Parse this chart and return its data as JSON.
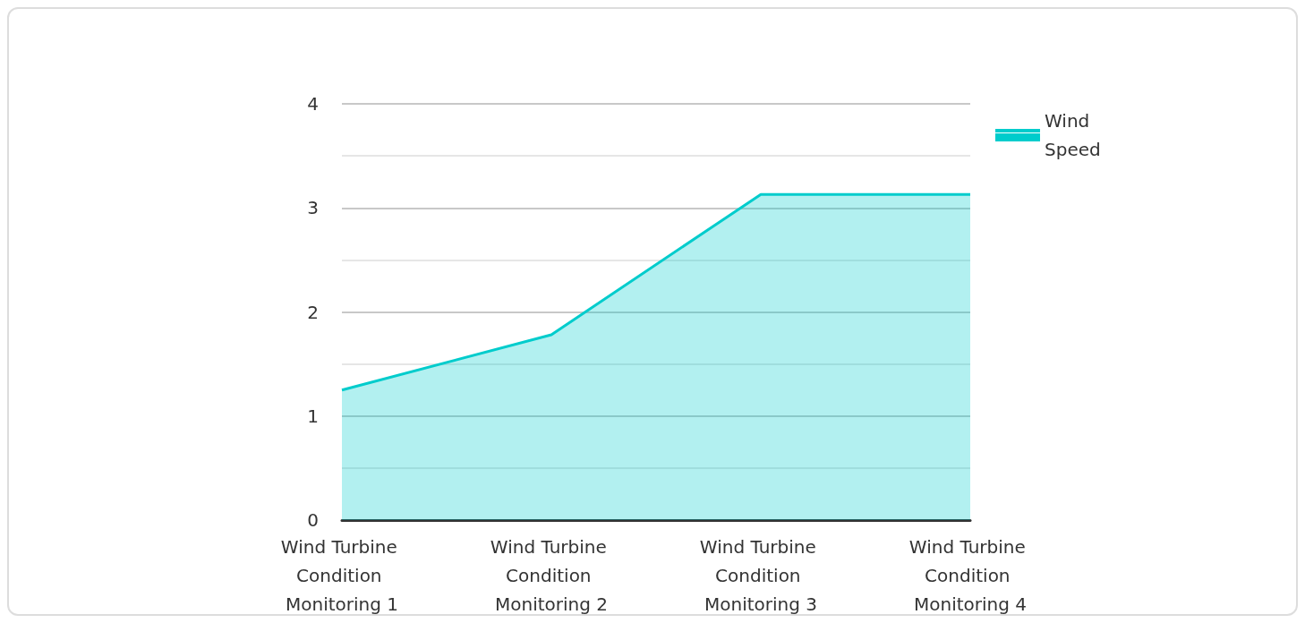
{
  "chart_data": {
    "type": "area",
    "categories": [
      "Wind Turbine Condition Monitoring 1",
      "Wind Turbine Condition Monitoring 2",
      "Wind Turbine Condition Monitoring 3",
      "Wind Turbine Condition Monitoring 4"
    ],
    "series": [
      {
        "name": "Wind Speed",
        "color": "#00cccc",
        "values": [
          1.25,
          1.78,
          3.13,
          3.13
        ]
      }
    ],
    "ylim": [
      0,
      4
    ],
    "yticks": [
      0,
      {
        "value": 0.5,
        "label": null
      },
      1,
      {
        "value": 1.5,
        "label": null
      },
      2,
      {
        "value": 2.5,
        "label": null
      },
      3,
      {
        "value": 3.5,
        "label": null
      },
      4
    ],
    "grid": "y",
    "legend": "top right",
    "marker": "none"
  }
}
